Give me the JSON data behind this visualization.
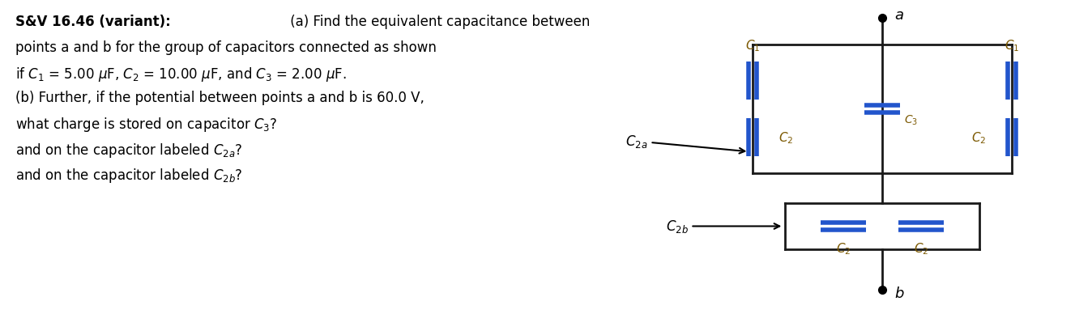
{
  "wire_color": "#1a1a1a",
  "cap_color": "#2255cc",
  "label_color": "#7B5800",
  "text_color": "#000000",
  "bg_color": "#ffffff",
  "lw_wire": 2.0,
  "lw_cap": 4.0,
  "line1_bold": "S&V 16.46 (variant):",
  "line1_rest": " (a) Find the equivalent capacitance between",
  "line2": "points a and b for the group of capacitors connected as shown",
  "line3": "if $C_1$ = 5.00 $\\mu$F, $C_2$ = 10.00 $\\mu$F, and $C_3$ = 2.00 $\\mu$F.",
  "line4": "(b) Further, if the potential between points a and b is 60.0 V,",
  "line5": "what charge is stored on capacitor $C_3$?",
  "line6": "and on the capacitor labeled $C_{2a}$?",
  "line7": "and on the capacitor labeled $C_{2b}$?"
}
